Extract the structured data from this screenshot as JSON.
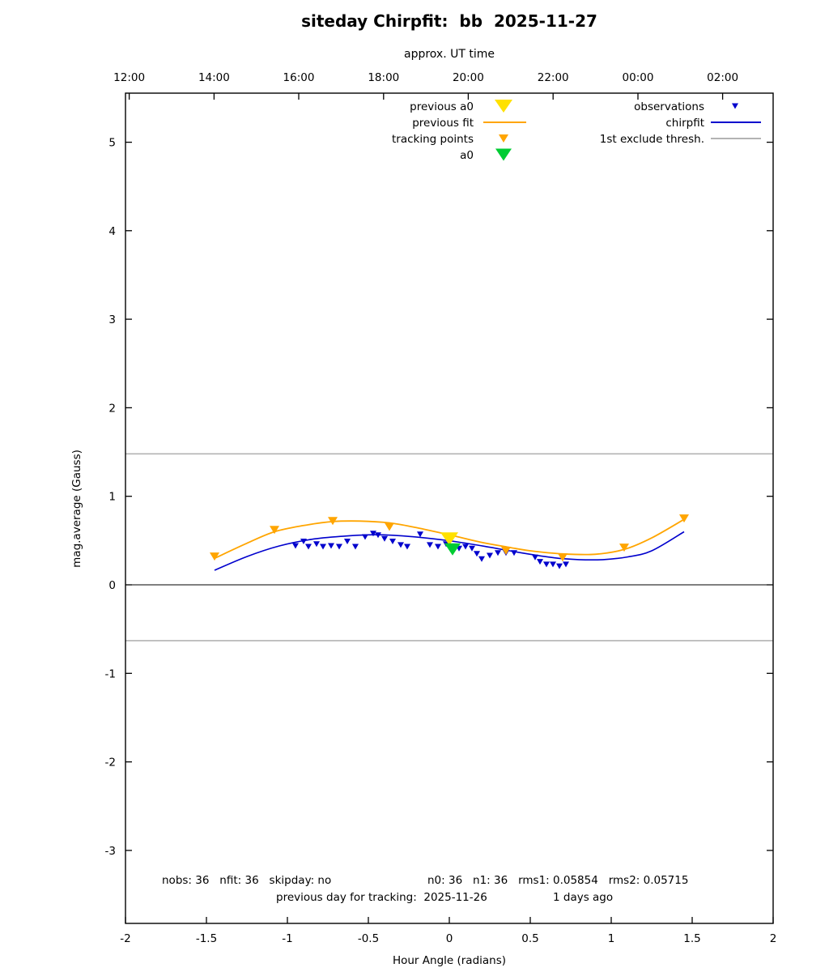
{
  "chart_data": {
    "type": "scatter",
    "title": "siteday Chirpfit:  bb  2025-11-27",
    "xlabel": "Hour Angle (radians)",
    "ylabel": "mag.average (Gauss)",
    "xlim": [
      -2,
      2
    ],
    "ylim": [
      -3.824,
      5.554
    ],
    "x_ticks": [
      -2,
      -1.5,
      -1,
      -0.5,
      0,
      0.5,
      1,
      1.5,
      2
    ],
    "x_tick_labels": [
      "-2",
      "-1.5",
      "-1",
      "-0.5",
      "0",
      "0.5",
      "1",
      "1.5",
      "2"
    ],
    "y_ticks": [
      -3,
      -2,
      -1,
      0,
      1,
      2,
      3,
      4,
      5
    ],
    "y_tick_labels": [
      "-3",
      "-2",
      "-1",
      "0",
      "1",
      "2",
      "3",
      "4",
      "5"
    ],
    "top_axis": {
      "title": "approx. UT time",
      "tick_labels": [
        "12:00",
        "14:00",
        "16:00",
        "18:00",
        "20:00",
        "22:00",
        "00:00",
        "02:00"
      ],
      "tick_positions": [
        -1.977,
        -1.453,
        -0.93,
        -0.406,
        0.117,
        0.641,
        1.165,
        1.688
      ]
    },
    "zero_line": 0,
    "exclude_thresholds": [
      1.48,
      -0.63
    ],
    "colors": {
      "previous_fit": "#FFA500",
      "chirpfit": "#0000CD",
      "observations": "#0000CD",
      "tracking": "#FFA500",
      "previous_a0": "#FFE100",
      "a0": "#00CC33",
      "threshold": "#B3B3B3",
      "frame": "#000000"
    },
    "previous_fit": {
      "x": [
        -1.45,
        -1.25,
        -1.08,
        -0.9,
        -0.72,
        -0.55,
        -0.37,
        -0.2,
        0.0,
        0.2,
        0.35,
        0.5,
        0.7,
        0.9,
        1.08,
        1.25,
        1.45
      ],
      "y": [
        0.3,
        0.47,
        0.6,
        0.67,
        0.715,
        0.72,
        0.7,
        0.645,
        0.565,
        0.48,
        0.43,
        0.385,
        0.35,
        0.345,
        0.4,
        0.53,
        0.74
      ]
    },
    "chirpfit": {
      "x": [
        -1.45,
        -1.25,
        -1.05,
        -0.85,
        -0.65,
        -0.5,
        -0.35,
        -0.15,
        0.05,
        0.25,
        0.45,
        0.65,
        0.8,
        0.95,
        1.1,
        1.25,
        1.45
      ],
      "y": [
        0.165,
        0.32,
        0.44,
        0.515,
        0.55,
        0.565,
        0.56,
        0.53,
        0.485,
        0.425,
        0.36,
        0.305,
        0.285,
        0.285,
        0.315,
        0.385,
        0.6
      ]
    },
    "observations": {
      "x": [
        -0.95,
        -0.9,
        -0.87,
        -0.82,
        -0.78,
        -0.73,
        -0.68,
        -0.63,
        -0.58,
        -0.52,
        -0.47,
        -0.44,
        -0.4,
        -0.35,
        -0.3,
        -0.26,
        -0.18,
        -0.12,
        -0.07,
        -0.02,
        0.02,
        0.06,
        0.1,
        0.14,
        0.17,
        0.2,
        0.25,
        0.3,
        0.35,
        0.4,
        0.53,
        0.56,
        0.6,
        0.64,
        0.68,
        0.72
      ],
      "y": [
        0.44,
        0.49,
        0.43,
        0.46,
        0.43,
        0.44,
        0.43,
        0.49,
        0.43,
        0.54,
        0.58,
        0.56,
        0.52,
        0.49,
        0.45,
        0.43,
        0.57,
        0.45,
        0.43,
        0.46,
        0.43,
        0.41,
        0.43,
        0.41,
        0.35,
        0.29,
        0.33,
        0.36,
        0.36,
        0.36,
        0.31,
        0.26,
        0.23,
        0.23,
        0.21,
        0.23
      ]
    },
    "tracking_points": {
      "x": [
        -1.45,
        -1.08,
        -0.72,
        -0.37,
        0.0,
        0.35,
        0.7,
        1.08,
        1.45
      ],
      "y": [
        0.32,
        0.62,
        0.72,
        0.655,
        0.525,
        0.385,
        0.31,
        0.42,
        0.75
      ]
    },
    "previous_a0": {
      "x": 0.0,
      "y": 0.52
    },
    "a0": {
      "x": 0.02,
      "y": 0.4
    },
    "legend": {
      "col1": [
        {
          "label": "previous a0",
          "marker": "triangle-large",
          "color_key": "previous_a0"
        },
        {
          "label": "previous fit",
          "marker": "line",
          "color_key": "previous_fit"
        },
        {
          "label": "tracking points",
          "marker": "triangle-medium",
          "color_key": "tracking"
        },
        {
          "label": "a0",
          "marker": "triangle-large2",
          "color_key": "a0"
        }
      ],
      "col2": [
        {
          "label": "observations",
          "marker": "triangle-small",
          "color_key": "observations"
        },
        {
          "label": "chirpfit",
          "marker": "line",
          "color_key": "chirpfit"
        },
        {
          "label": "1st exclude thresh.",
          "marker": "line",
          "color_key": "threshold"
        }
      ]
    },
    "stats": {
      "line1_left": "nobs: 36   nfit: 36   skipday: no",
      "line1_right": "n0: 36   n1: 36   rms1: 0.05854   rms2: 0.05715",
      "line2_left": "previous day for tracking:  2025-11-26",
      "line2_right": "1 days ago"
    }
  }
}
